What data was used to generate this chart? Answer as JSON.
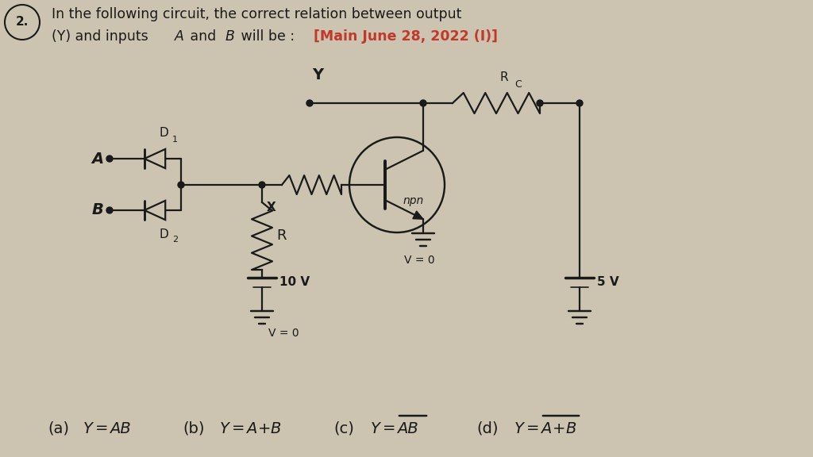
{
  "bg_color": "#ccc4b0",
  "ref_color": "#c0392b",
  "title_line1": "In the following circuit, the correct relation between output",
  "title_line2": "(Y) and inputs A and B will be :",
  "title_ref": "[Main June 28, 2022 (I)]",
  "lw": 1.6
}
